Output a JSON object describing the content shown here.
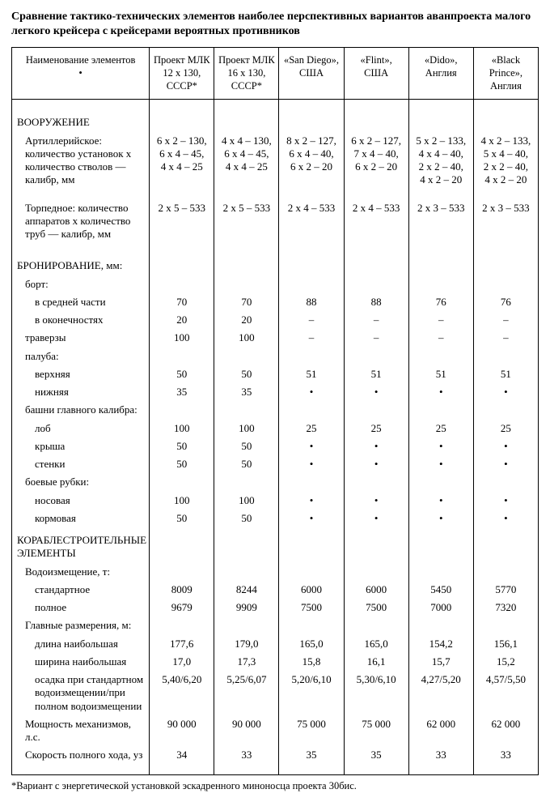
{
  "title": "Сравнение тактико-технических элементов наиболее перспективных вариантов аванпроекта малого легкого крейсера с крейсерами вероятных противников",
  "columns": [
    "Наименование элементов\n•",
    "Проект МЛК\n12 х 130,\nСССР*",
    "Проект МЛК\n16 х 130,\nСССР*",
    "«San Diego»,\nСША",
    "«Flint»,\nСША",
    "«Dido»,\nАнглия",
    "«Black Prince»,\nАнглия"
  ],
  "sections": {
    "arm": "ВООРУЖЕНИЕ",
    "armor": "БРОНИРОВАНИЕ, мм:",
    "ship": "КОРАБЛЕСТРОИТЕЛЬНЫЕ ЭЛЕМЕНТЫ"
  },
  "rows": {
    "artillery_label": "Артиллерийское: количество установок х количество стволов — калибр, мм",
    "artillery": [
      "6 х 2 – 130,\n6 х 4 – 45,\n4 х 4 – 25",
      "4 х 4 – 130,\n6 х 4 – 45,\n4 х 4 – 25",
      "8 х 2 – 127,\n6 х 4 – 40,\n6 х 2 – 20",
      "6 х 2 – 127,\n7 х 4 – 40,\n6 х 2 – 20",
      "5 х 2 – 133,\n4 х 4 – 40,\n2 х 2 – 40,\n4 х 2 – 20",
      "4 х 2 – 133,\n5 х 4 – 40,\n2 х 2 – 40,\n4 х 2 – 20"
    ],
    "torpedo_label": "Торпедное: количество аппаратов х количество труб — калибр, мм",
    "torpedo": [
      "2 х 5 – 533",
      "2 х 5 – 533",
      "2 х 4 – 533",
      "2 х 4 – 533",
      "2 х 3 – 533",
      "2 х 3 – 533"
    ],
    "side_label": "борт:",
    "side_mid_label": "в средней части",
    "side_mid": [
      "70",
      "70",
      "88",
      "88",
      "76",
      "76"
    ],
    "side_end_label": "в оконечностях",
    "side_end": [
      "20",
      "20",
      "–",
      "–",
      "–",
      "–"
    ],
    "trav_label": "траверзы",
    "trav": [
      "100",
      "100",
      "–",
      "–",
      "–",
      "–"
    ],
    "deck_label": "палуба:",
    "deck_up_label": "верхняя",
    "deck_up": [
      "50",
      "50",
      "51",
      "51",
      "51",
      "51"
    ],
    "deck_lo_label": "нижняя",
    "deck_lo": [
      "35",
      "35",
      "•",
      "•",
      "•",
      "•"
    ],
    "turret_label": "башни главного калибра:",
    "tur_lob_label": "лоб",
    "tur_lob": [
      "100",
      "100",
      "25",
      "25",
      "25",
      "25"
    ],
    "tur_roof_label": "крыша",
    "tur_roof": [
      "50",
      "50",
      "•",
      "•",
      "•",
      "•"
    ],
    "tur_wall_label": "стенки",
    "tur_wall": [
      "50",
      "50",
      "•",
      "•",
      "•",
      "•"
    ],
    "conn_label": "боевые рубки:",
    "conn_bow_label": "носовая",
    "conn_bow": [
      "100",
      "100",
      "•",
      "•",
      "•",
      "•"
    ],
    "conn_stern_label": "кормовая",
    "conn_stern": [
      "50",
      "50",
      "•",
      "•",
      "•",
      "•"
    ],
    "disp_label": "Водоизмещение, т:",
    "disp_std_label": "стандартное",
    "disp_std": [
      "8009",
      "8244",
      "6000",
      "6000",
      "5450",
      "5770"
    ],
    "disp_full_label": "полное",
    "disp_full": [
      "9679",
      "9909",
      "7500",
      "7500",
      "7000",
      "7320"
    ],
    "dim_label": "Главные размерения, м:",
    "len_label": "длина наибольшая",
    "len": [
      "177,6",
      "179,0",
      "165,0",
      "165,0",
      "154,2",
      "156,1"
    ],
    "beam_label": "ширина наибольшая",
    "beam": [
      "17,0",
      "17,3",
      "15,8",
      "16,1",
      "15,7",
      "15,2"
    ],
    "draft_label": "осадка при стандартном водоизмещении/при полном водоизмещении",
    "draft": [
      "5,40/6,20",
      "5,25/6,07",
      "5,20/6,10",
      "5,30/6,10",
      "4,27/5,20",
      "4,57/5,50"
    ],
    "power_label": "Мощность механизмов, л.с.",
    "power": [
      "90 000",
      "90 000",
      "75 000",
      "75 000",
      "62 000",
      "62 000"
    ],
    "speed_label": "Скорость полного хода, уз",
    "speed": [
      "34",
      "33",
      "35",
      "35",
      "33",
      "33"
    ]
  },
  "footnote": "*Вариант с энергетической установкой эскадренного миноносца проекта 30бис."
}
